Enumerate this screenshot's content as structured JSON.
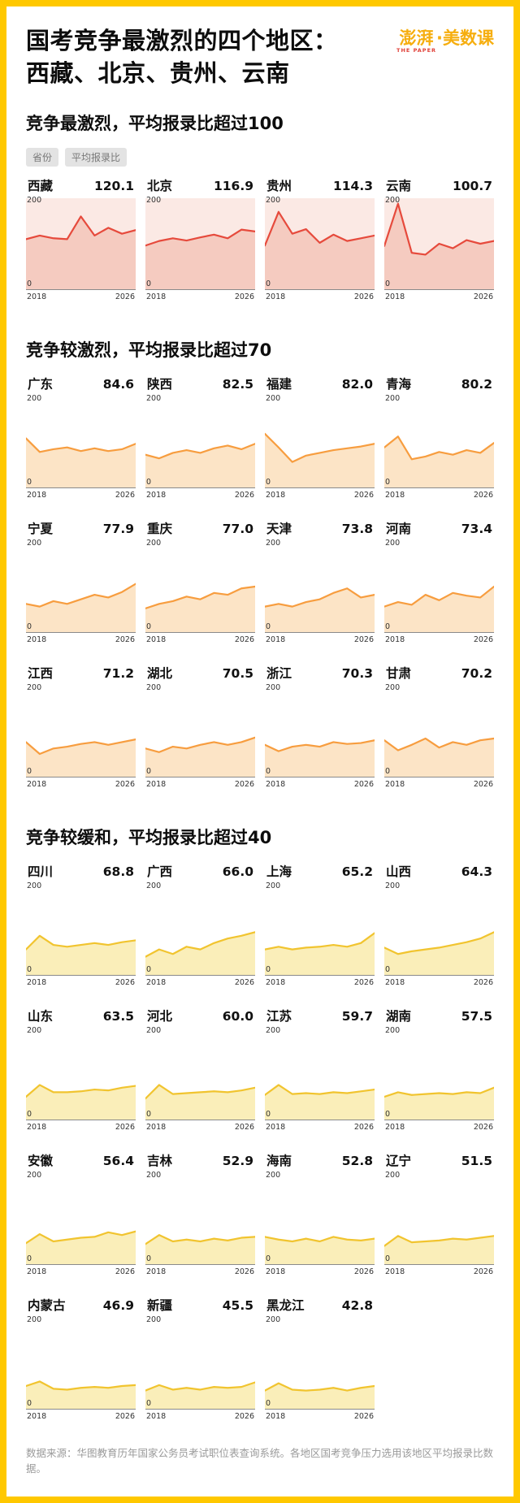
{
  "page": {
    "title_line1": "国考竞争最激烈的四个地区：",
    "title_line2": "西藏、北京、贵州、云南",
    "logo_main": "澎湃",
    "logo_sub": "THE PAPER",
    "logo_suffix": "·美数课",
    "footer_text": "数据来源：华图教育历年国家公务员考试职位表查询系统。各地区国考竞争压力选用该地区平均报录比数据。"
  },
  "legend": {
    "province": "省份",
    "ratio": "平均报录比"
  },
  "colors": {
    "border_yellow": "#FFC800",
    "tier1_line": "#E64A3C",
    "tier2_line": "#F79D3F",
    "tier3_line": "#F1C42F"
  },
  "chart_data": [
    {
      "type": "line",
      "group_title": "竞争最激烈，平均报录比超过100",
      "x": [
        2018,
        2019,
        2020,
        2021,
        2022,
        2023,
        2024,
        2025,
        2026
      ],
      "ylim": [
        0,
        200
      ],
      "y_ticks": [
        "0",
        "200"
      ],
      "x_ticks": [
        "2018",
        "2026"
      ],
      "line_color": "#E64A3C",
      "area_color": "#F5CBC0",
      "panel_bg": "#FBE9E4",
      "series": [
        {
          "name": "西藏",
          "avg": "120.1",
          "values": [
            110,
            118,
            112,
            110,
            160,
            118,
            135,
            122,
            130
          ]
        },
        {
          "name": "北京",
          "avg": "116.9",
          "values": [
            96,
            106,
            112,
            107,
            114,
            120,
            112,
            131,
            127
          ]
        },
        {
          "name": "贵州",
          "avg": "114.3",
          "values": [
            96,
            170,
            122,
            132,
            102,
            120,
            106,
            112,
            118
          ]
        },
        {
          "name": "云南",
          "avg": "100.7",
          "values": [
            95,
            188,
            80,
            76,
            100,
            90,
            108,
            100,
            106
          ]
        }
      ]
    },
    {
      "type": "line",
      "group_title": "竞争较激烈，平均报录比超过70",
      "x": [
        2018,
        2019,
        2020,
        2021,
        2022,
        2023,
        2024,
        2025,
        2026
      ],
      "ylim": [
        0,
        200
      ],
      "y_ticks": [
        "0",
        "200"
      ],
      "x_ticks": [
        "2018",
        "2026"
      ],
      "line_color": "#F79D3F",
      "area_color": "#FCE4C6",
      "panel_bg": "#FFFFFF",
      "series": [
        {
          "name": "广东",
          "avg": "84.6",
          "values": [
            108,
            78,
            84,
            88,
            80,
            86,
            80,
            84,
            96
          ]
        },
        {
          "name": "陕西",
          "avg": "82.5",
          "values": [
            72,
            64,
            76,
            82,
            76,
            86,
            92,
            84,
            96
          ]
        },
        {
          "name": "福建",
          "avg": "82.0",
          "values": [
            118,
            88,
            56,
            70,
            76,
            82,
            86,
            90,
            96
          ]
        },
        {
          "name": "青海",
          "avg": "80.2",
          "values": [
            88,
            112,
            62,
            68,
            78,
            72,
            82,
            76,
            98
          ]
        },
        {
          "name": "宁夏",
          "avg": "77.9",
          "values": [
            62,
            56,
            68,
            62,
            72,
            82,
            76,
            88,
            106
          ]
        },
        {
          "name": "重庆",
          "avg": "77.0",
          "values": [
            52,
            62,
            68,
            78,
            72,
            86,
            82,
            96,
            100
          ]
        },
        {
          "name": "天津",
          "avg": "73.8",
          "values": [
            56,
            62,
            56,
            66,
            72,
            86,
            96,
            76,
            82
          ]
        },
        {
          "name": "河南",
          "avg": "73.4",
          "values": [
            56,
            66,
            60,
            82,
            70,
            86,
            80,
            76,
            100
          ]
        },
        {
          "name": "江西",
          "avg": "71.2",
          "values": [
            76,
            50,
            62,
            66,
            72,
            76,
            70,
            76,
            82
          ]
        },
        {
          "name": "湖北",
          "avg": "70.5",
          "values": [
            62,
            54,
            66,
            62,
            70,
            76,
            70,
            76,
            86
          ]
        },
        {
          "name": "浙江",
          "avg": "70.3",
          "values": [
            70,
            56,
            66,
            70,
            66,
            76,
            72,
            74,
            80
          ]
        },
        {
          "name": "甘肃",
          "avg": "70.2",
          "values": [
            80,
            58,
            70,
            84,
            64,
            76,
            70,
            80,
            84
          ]
        }
      ]
    },
    {
      "type": "line",
      "group_title": "竞争较缓和，平均报录比超过40",
      "x": [
        2018,
        2019,
        2020,
        2021,
        2022,
        2023,
        2024,
        2025,
        2026
      ],
      "ylim": [
        0,
        200
      ],
      "y_ticks": [
        "0",
        "200"
      ],
      "x_ticks": [
        "2018",
        "2026"
      ],
      "line_color": "#F1C42F",
      "area_color": "#FAEEB9",
      "panel_bg": "#FFFFFF",
      "series": [
        {
          "name": "四川",
          "avg": "68.8",
          "values": [
            56,
            86,
            66,
            62,
            66,
            70,
            66,
            72,
            76
          ]
        },
        {
          "name": "广西",
          "avg": "66.0",
          "values": [
            40,
            56,
            46,
            62,
            56,
            70,
            80,
            86,
            94
          ]
        },
        {
          "name": "上海",
          "avg": "65.2",
          "values": [
            56,
            62,
            56,
            60,
            62,
            66,
            62,
            70,
            92
          ]
        },
        {
          "name": "山西",
          "avg": "64.3",
          "values": [
            60,
            46,
            52,
            56,
            60,
            66,
            72,
            80,
            94
          ]
        },
        {
          "name": "山东",
          "avg": "63.5",
          "values": [
            50,
            76,
            60,
            60,
            62,
            66,
            64,
            70,
            74
          ]
        },
        {
          "name": "河北",
          "avg": "60.0",
          "values": [
            46,
            76,
            56,
            58,
            60,
            62,
            60,
            64,
            70
          ]
        },
        {
          "name": "江苏",
          "avg": "59.7",
          "values": [
            54,
            76,
            56,
            58,
            56,
            60,
            58,
            62,
            66
          ]
        },
        {
          "name": "湖南",
          "avg": "57.5",
          "values": [
            50,
            60,
            54,
            56,
            58,
            56,
            60,
            58,
            70
          ]
        },
        {
          "name": "安徽",
          "avg": "56.4",
          "values": [
            46,
            66,
            50,
            54,
            58,
            60,
            70,
            64,
            72
          ]
        },
        {
          "name": "吉林",
          "avg": "52.9",
          "values": [
            44,
            64,
            50,
            54,
            50,
            56,
            52,
            58,
            60
          ]
        },
        {
          "name": "海南",
          "avg": "52.8",
          "values": [
            60,
            54,
            50,
            56,
            50,
            60,
            54,
            52,
            56
          ]
        },
        {
          "name": "辽宁",
          "avg": "51.5",
          "values": [
            40,
            62,
            48,
            50,
            52,
            56,
            54,
            58,
            62
          ]
        },
        {
          "name": "内蒙古",
          "avg": "46.9",
          "values": [
            50,
            60,
            44,
            42,
            46,
            48,
            46,
            50,
            52
          ]
        },
        {
          "name": "新疆",
          "avg": "45.5",
          "values": [
            40,
            52,
            42,
            46,
            42,
            48,
            46,
            48,
            58
          ]
        },
        {
          "name": "黑龙江",
          "avg": "42.8",
          "values": [
            40,
            56,
            42,
            40,
            42,
            46,
            40,
            46,
            50
          ]
        }
      ]
    }
  ]
}
